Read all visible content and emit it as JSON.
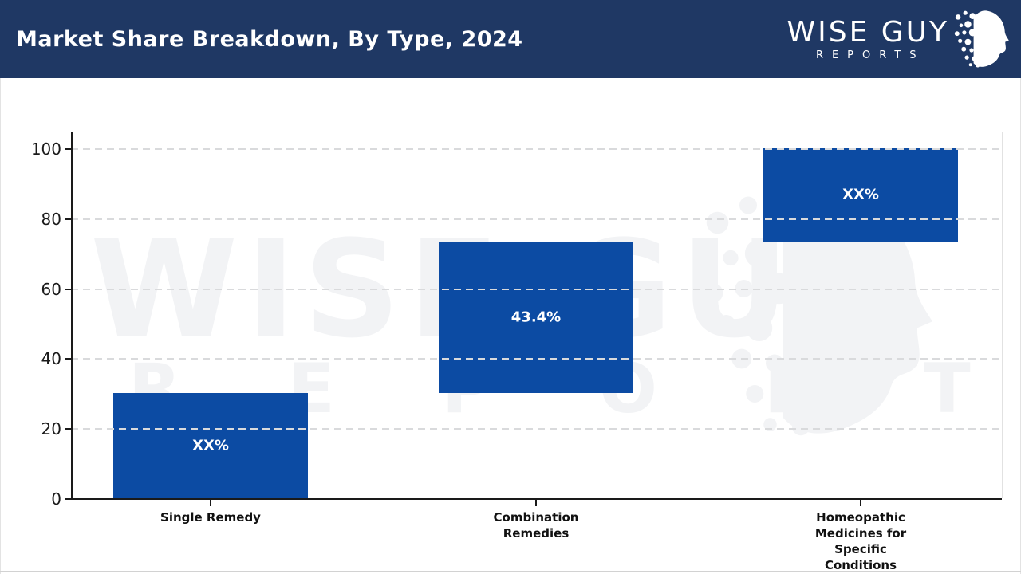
{
  "header": {
    "title": "Market Share Breakdown, By Type, 2024",
    "bg_color": "#1f3864",
    "logo": {
      "line1": "WISE GUY",
      "line2": "REPORTS"
    }
  },
  "watermark": {
    "line1": "WISE GUY",
    "line2": "REPORTS"
  },
  "chart_data": {
    "type": "bar",
    "subtype": "floating-segment-bars (stacked percentage breakdown)",
    "title": "Market Share Breakdown, By Type, 2024",
    "categories": [
      "Single Remedy",
      "Combination Remedies",
      "Homeopathic Medicines for Specific Conditions"
    ],
    "series": [
      {
        "name": "Market share segment",
        "starts": [
          0,
          30,
          73.4
        ],
        "ends": [
          30,
          73.4,
          100
        ],
        "values": [
          30,
          43.4,
          26.6
        ]
      }
    ],
    "bar_labels": [
      "XX%",
      "43.4%",
      "XX%"
    ],
    "yticks": [
      0,
      20,
      40,
      60,
      80,
      100
    ],
    "ylim": [
      0,
      105
    ],
    "xlabel": "",
    "ylabel": "",
    "grid": "horizontal-dashed, drawn above bars",
    "legend": "none",
    "bar_color": "#0c4ba3",
    "bar_label_color": "#ffffff",
    "gridline_color": "#d9dadc",
    "axis_color": "#1a1a1a",
    "watermark_color": "#f2f3f5"
  }
}
